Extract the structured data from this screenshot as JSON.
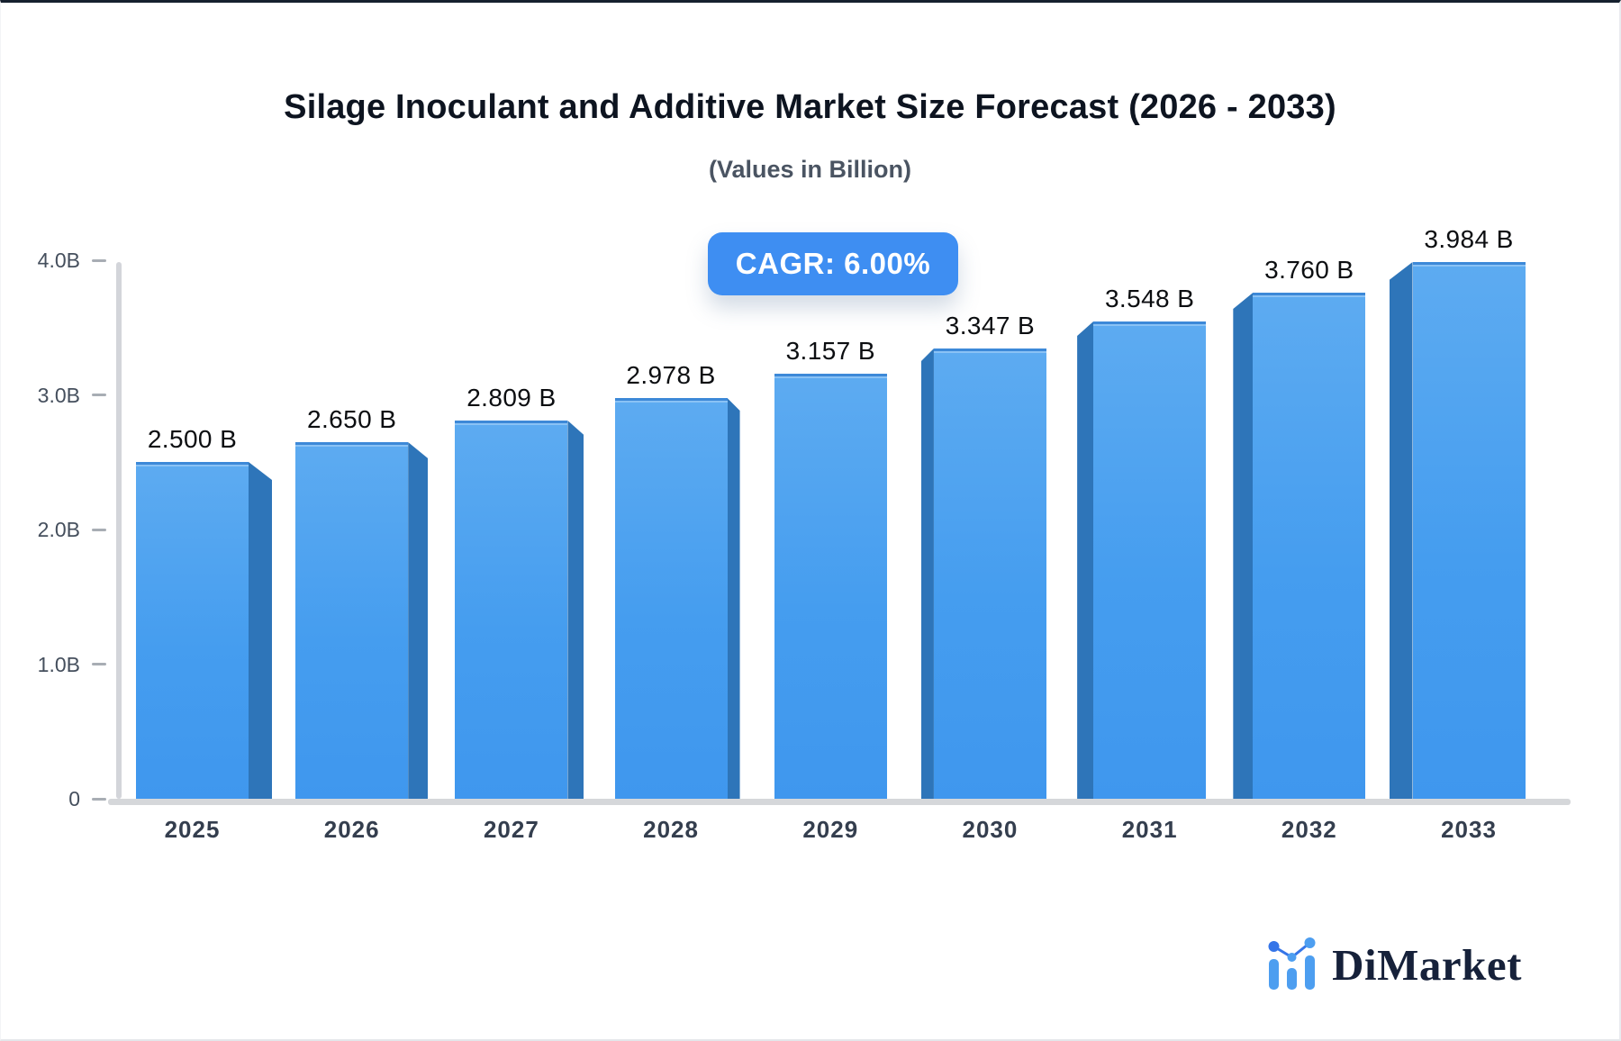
{
  "title": "Silage Inoculant and Additive Market Size Forecast (2026 - 2033)",
  "subtitle": "(Values in Billion)",
  "badge": {
    "label": "CAGR: 6.00%",
    "color": "#3e8ef2"
  },
  "logo": {
    "text": "DiMarket",
    "icon": "mini-bar-chart-icon"
  },
  "chart_data": {
    "type": "bar",
    "title": "Silage Inoculant and Additive Market Size Forecast (2026 - 2033)",
    "subtitle": "(Values in Billion)",
    "annotation": "CAGR: 6.00%",
    "categories": [
      "2025",
      "2026",
      "2027",
      "2028",
      "2029",
      "2030",
      "2031",
      "2032",
      "2033"
    ],
    "values": [
      2.5,
      2.65,
      2.809,
      2.978,
      3.157,
      3.347,
      3.548,
      3.76,
      3.984
    ],
    "bar_labels": [
      "2.500 B",
      "2.650 B",
      "2.809 B",
      "2.978 B",
      "3.157 B",
      "3.347 B",
      "3.548 B",
      "3.760 B",
      "3.984 B"
    ],
    "xlabel": "",
    "ylabel": "",
    "ylim": [
      0,
      4.0
    ],
    "grid": false,
    "legend": false,
    "yticks": [
      {
        "value": 4.0,
        "label": "4.0B"
      },
      {
        "value": 3.0,
        "label": "3.0B"
      },
      {
        "value": 2.0,
        "label": "2.0B"
      },
      {
        "value": 1.0,
        "label": "1.0B"
      },
      {
        "value": 0.0,
        "label": "0"
      }
    ],
    "colors": {
      "bar_face_top": "#5dabf1",
      "bar_face_mid": "#459def",
      "bar_face_bottom": "#3f97ee",
      "bar_side": "#2e75b9",
      "bar_edge": "#3d89d8",
      "axis_line": "#d3d5da",
      "baseline": "#d5d7da",
      "tick_dash": "#a8adb4",
      "badge_blue": "#3e8ef2",
      "logo_bar_blue": "#4d9ef0",
      "logo_line_blue": "#3575e8"
    }
  }
}
